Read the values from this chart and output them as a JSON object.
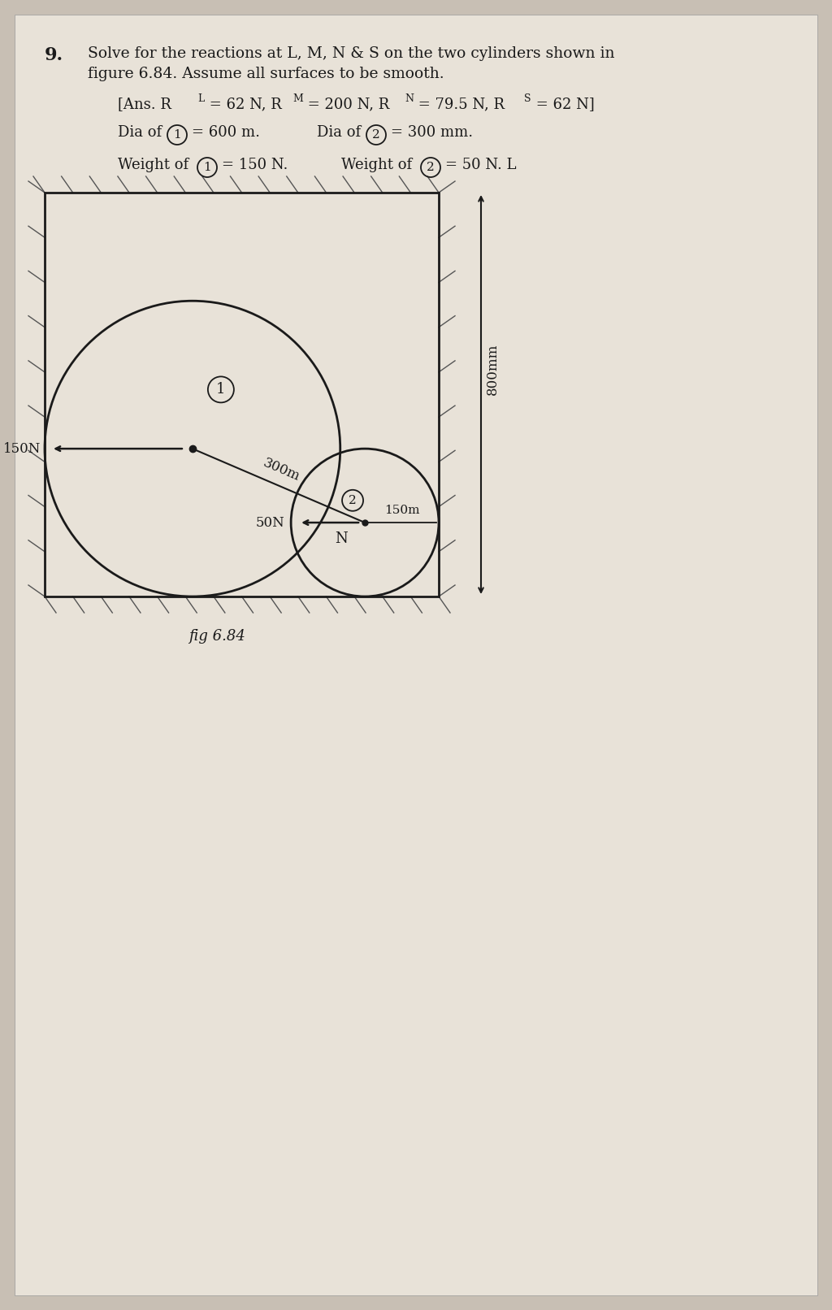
{
  "bg_color": "#c8bfb4",
  "paper_color": "#e8e2d8",
  "text_color": "#1a1a1a",
  "circle_color": "#1a1a1a",
  "box_edge_color": "#1a1a1a",
  "q_number": "9.",
  "q_line1": "Solve for the reactions at L, M, N & S on the two cylinders shown in",
  "q_line2": "figure 6.84. Assume all surfaces to be smooth.",
  "ans_line": "[Ans. Rₗ = 62 N, Rₘ = 200 N, Rₙ = 79.5 N, Rₛ = 62 N]",
  "dia1_text": "Dia of",
  "dia1_val": "= 600 m.",
  "dia2_text": "Dia of",
  "dia2_val": "= 300 mm.",
  "wt1_text": "Weight of",
  "wt1_val": "= 150 N.",
  "wt2_text": "Weight of",
  "wt2_val": "= 50 N. L",
  "fig_label": "fig 6.84",
  "dim_800mm": "800mm",
  "dim_300m": "300m",
  "dim_150m": "150m",
  "label_N": "N",
  "force1": "150N",
  "force2": "50N",
  "cyl1_num": "1",
  "cyl2_num": "2"
}
